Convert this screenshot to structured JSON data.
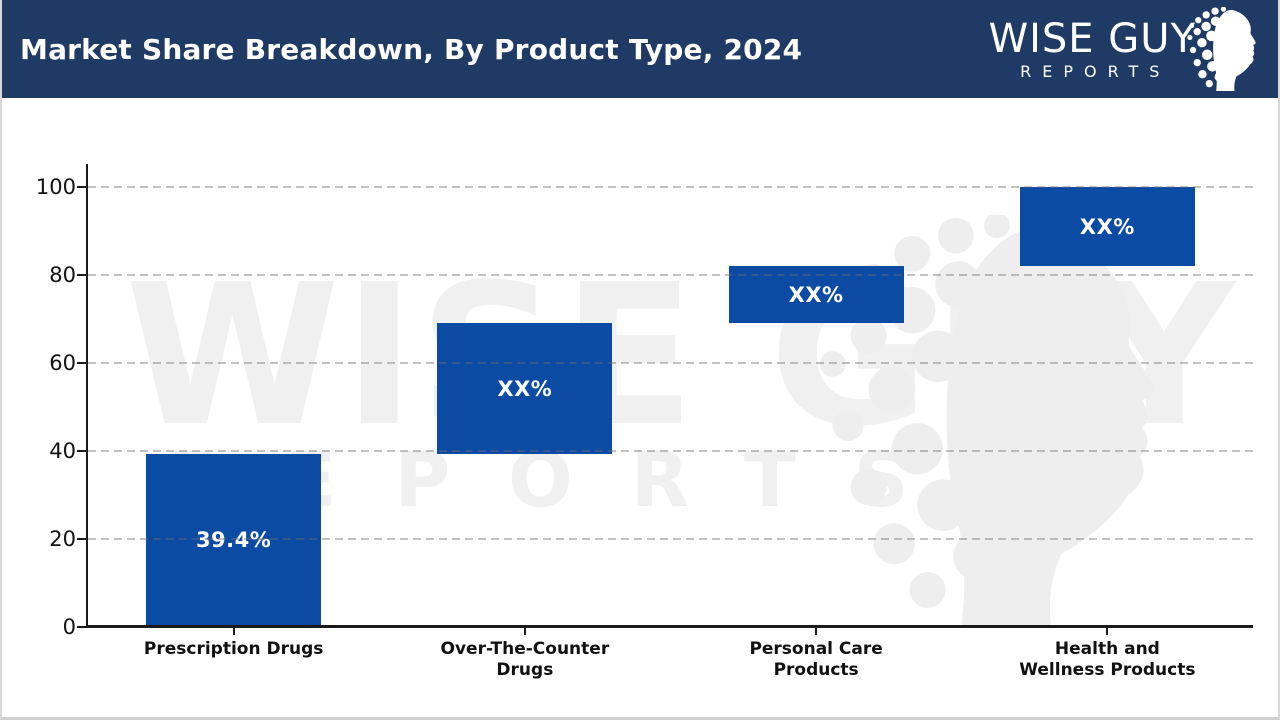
{
  "header": {
    "title": "Market Share Breakdown, By Product Type, 2024",
    "background_color": "#1f3a64",
    "logo": {
      "name": "WISE GUY",
      "subname": "REPORTS",
      "icon": "dotted-face-profile"
    }
  },
  "watermark": {
    "line1": "WISE GUY",
    "line2": "REPORTS",
    "icon": "dotted-face-profile"
  },
  "chart_data": {
    "type": "bar",
    "subtype": "waterfall",
    "title": "Market Share Breakdown, By Product Type, 2024",
    "categories": [
      "Prescription Drugs",
      "Over-The-Counter Drugs",
      "Personal Care Products",
      "Health and Wellness Products"
    ],
    "category_label_lines": [
      [
        "Prescription Drugs"
      ],
      [
        "Over-The-Counter",
        "Drugs"
      ],
      [
        "Personal Care",
        "Products"
      ],
      [
        "Health and",
        "Wellness Products"
      ]
    ],
    "series": [
      {
        "name": "Prescription Drugs",
        "start": 0,
        "end": 39.4,
        "label": "39.4%"
      },
      {
        "name": "Over-The-Counter Drugs",
        "start": 39.4,
        "end": 69,
        "label": "XX%"
      },
      {
        "name": "Personal Care Products",
        "start": 69,
        "end": 82,
        "label": "XX%"
      },
      {
        "name": "Health and Wellness Products",
        "start": 82,
        "end": 100,
        "label": "XX%"
      }
    ],
    "yticks": [
      0,
      20,
      40,
      60,
      80,
      100
    ],
    "ylim": [
      0,
      105
    ],
    "grid": "horizontal-dashed",
    "legend": "none",
    "bar_color": "#0b4ba3",
    "bar_label_color": "#ffffff",
    "axis_color": "#1a1a1a"
  }
}
